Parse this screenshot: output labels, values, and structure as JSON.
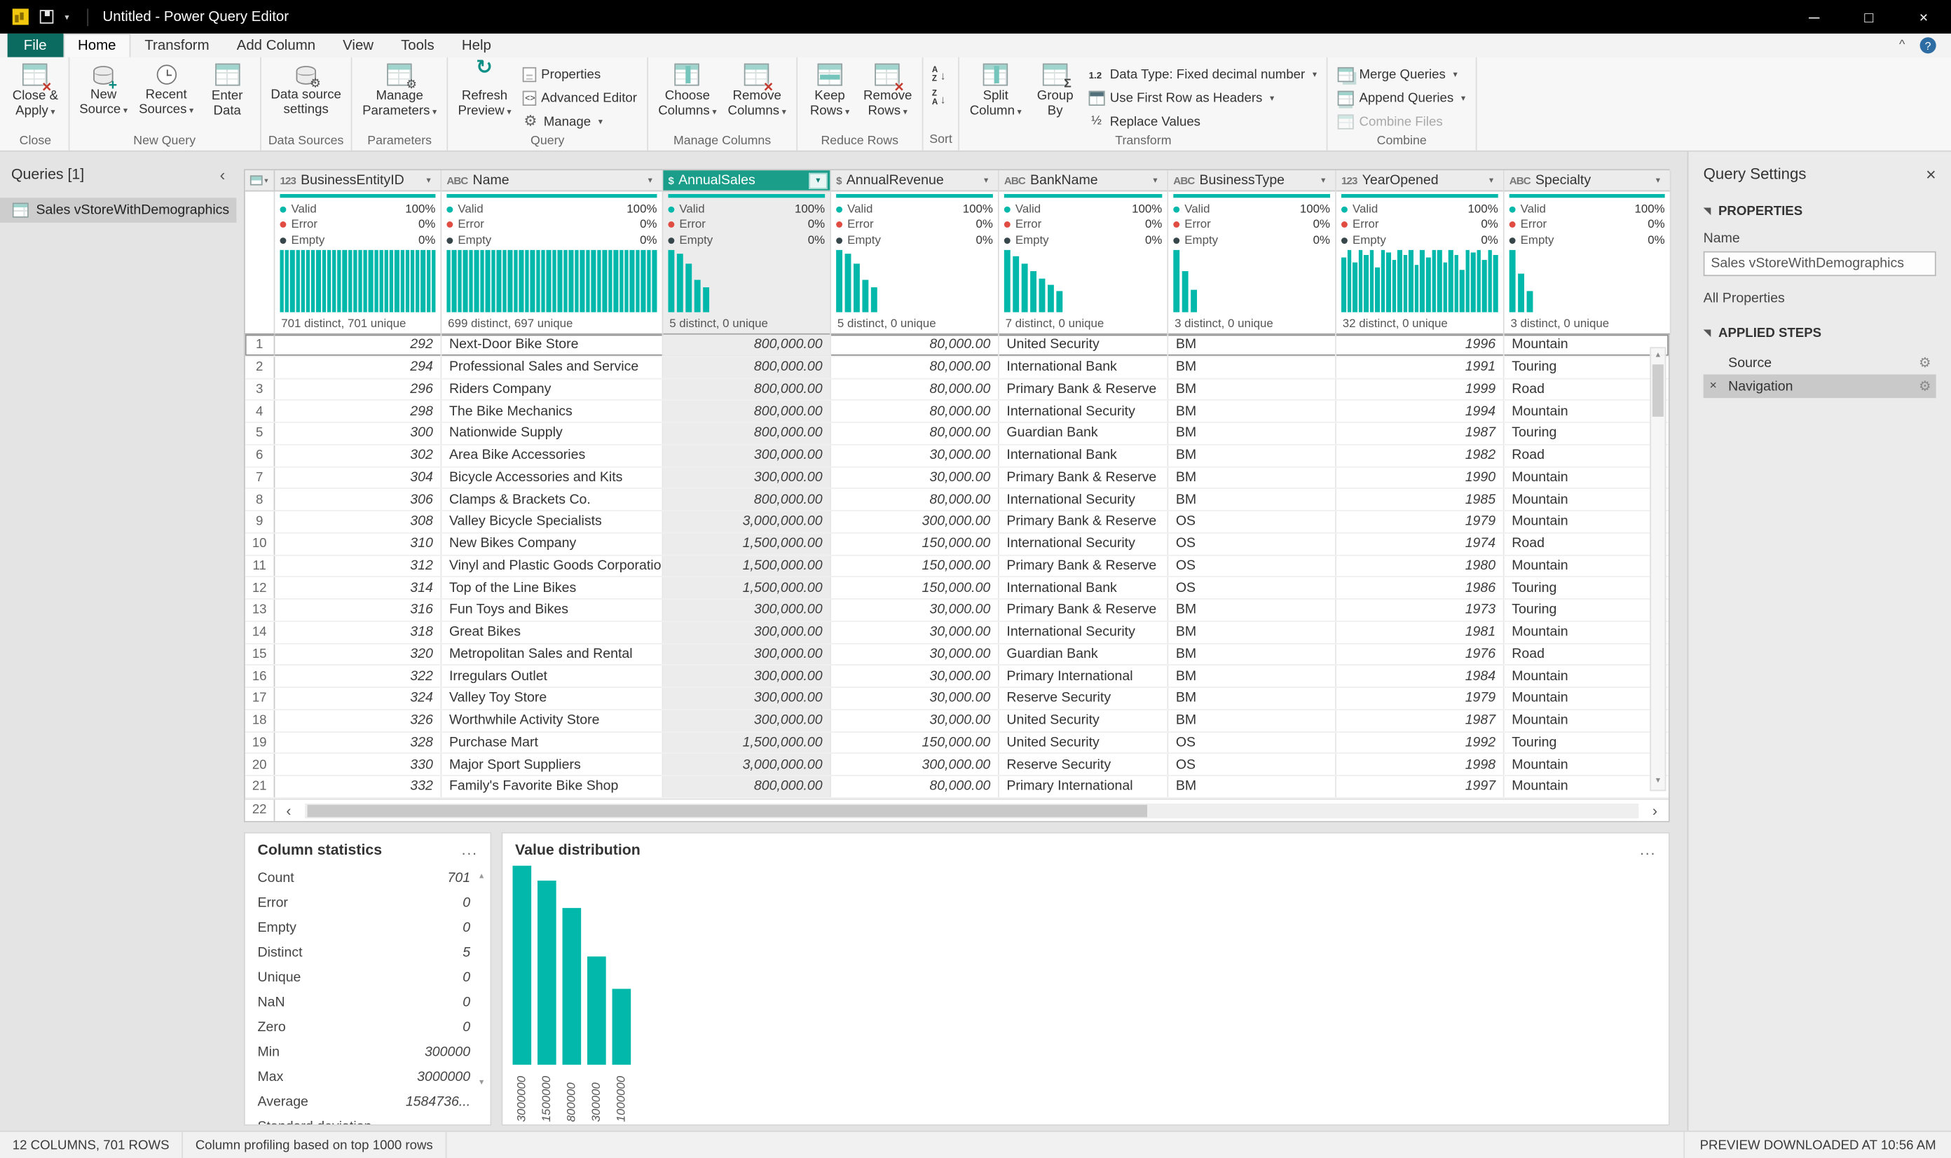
{
  "appearance": {
    "accent_teal": "#01b8aa",
    "selected_header_teal": "#1a9e8a",
    "error_red": "#e04c42",
    "empty_dark": "#37464a",
    "file_tab_teal": "#0c6b60",
    "titlebar_black": "#000000"
  },
  "titlebar": {
    "title": "Untitled - Power Query Editor"
  },
  "tabs": {
    "file": "File",
    "items": [
      {
        "label": "Home",
        "cls": "active"
      },
      {
        "label": "Transform",
        "cls": ""
      },
      {
        "label": "Add Column",
        "cls": ""
      },
      {
        "label": "View",
        "cls": ""
      },
      {
        "label": "Tools",
        "cls": ""
      },
      {
        "label": "Help",
        "cls": ""
      }
    ]
  },
  "ribbon": {
    "groups": {
      "close": "Close",
      "new_query": "New Query",
      "data_sources": "Data Sources",
      "parameters": "Parameters",
      "query": "Query",
      "manage_columns": "Manage Columns",
      "reduce_rows": "Reduce Rows",
      "sort": "Sort",
      "transform": "Transform",
      "combine": "Combine"
    },
    "buttons": {
      "close_apply_1": "Close &",
      "close_apply_2": "Apply",
      "new_source_1": "New",
      "new_source_2": "Source",
      "recent_sources_1": "Recent",
      "recent_sources_2": "Sources",
      "enter_data_1": "Enter",
      "enter_data_2": "Data",
      "data_source_settings_1": "Data source",
      "data_source_settings_2": "settings",
      "manage_parameters_1": "Manage",
      "manage_parameters_2": "Parameters",
      "refresh_preview_1": "Refresh",
      "refresh_preview_2": "Preview",
      "properties": "Properties",
      "advanced_editor": "Advanced Editor",
      "manage": "Manage",
      "choose_columns_1": "Choose",
      "choose_columns_2": "Columns",
      "remove_columns_1": "Remove",
      "remove_columns_2": "Columns",
      "keep_rows_1": "Keep",
      "keep_rows_2": "Rows",
      "remove_rows_1": "Remove",
      "remove_rows_2": "Rows",
      "split_column_1": "Split",
      "split_column_2": "Column",
      "group_by_1": "Group",
      "group_by_2": "By",
      "data_type": "Data Type: Fixed decimal number",
      "use_first_row": "Use First Row as Headers",
      "replace_values": "Replace Values",
      "merge_queries": "Merge Queries",
      "append_queries": "Append Queries",
      "combine_files": "Combine Files"
    }
  },
  "queries_panel": {
    "header": "Queries [1]",
    "items": [
      {
        "label": "Sales vStoreWithDemographics",
        "cls": "sel"
      }
    ]
  },
  "grid": {
    "quality_labels": {
      "valid": "Valid",
      "error": "Error",
      "empty": "Empty"
    },
    "partial_row_number": "22",
    "columns": [
      {
        "name": "BusinessEntityID",
        "type": "123",
        "w": 134,
        "cls": "",
        "hmode": "dense",
        "valid": "100%",
        "error": "0%",
        "empty": "0%",
        "distinct": "701 distinct, 701 unique",
        "bars": [
          50,
          50,
          50,
          50,
          50,
          50,
          50,
          50,
          50,
          50,
          50,
          50,
          50,
          50,
          50,
          50,
          50,
          50,
          50,
          50,
          50,
          50,
          50,
          50,
          50,
          50,
          50,
          50,
          50,
          50
        ]
      },
      {
        "name": "Name",
        "type": "ABC",
        "w": 178,
        "cls": "",
        "hmode": "dense",
        "valid": "100%",
        "error": "0%",
        "empty": "0%",
        "distinct": "699 distinct, 697 unique",
        "bars": [
          50,
          50,
          50,
          50,
          50,
          50,
          50,
          50,
          50,
          50,
          50,
          50,
          50,
          50,
          50,
          50,
          50,
          50,
          50,
          50,
          50,
          50,
          50,
          50,
          50,
          50,
          50,
          50,
          50,
          50,
          50,
          50,
          50,
          50,
          50,
          50,
          50,
          50
        ]
      },
      {
        "name": "AnnualSales",
        "type": "$",
        "w": 135,
        "cls": "sel",
        "hmode": "sparse",
        "valid": "100%",
        "error": "0%",
        "empty": "0%",
        "distinct": "5 distinct, 0 unique",
        "bars": [
          50,
          47,
          39,
          26,
          20
        ]
      },
      {
        "name": "AnnualRevenue",
        "type": "$",
        "w": 135,
        "cls": "",
        "hmode": "sparse",
        "valid": "100%",
        "error": "0%",
        "empty": "0%",
        "distinct": "5 distinct, 0 unique",
        "bars": [
          50,
          47,
          39,
          26,
          20
        ]
      },
      {
        "name": "BankName",
        "type": "ABC",
        "w": 136,
        "cls": "",
        "hmode": "sparse",
        "valid": "100%",
        "error": "0%",
        "empty": "0%",
        "distinct": "7 distinct, 0 unique",
        "bars": [
          50,
          45,
          39,
          33,
          27,
          22,
          17
        ]
      },
      {
        "name": "BusinessType",
        "type": "ABC",
        "w": 135,
        "cls": "",
        "hmode": "sparse",
        "valid": "100%",
        "error": "0%",
        "empty": "0%",
        "distinct": "3 distinct, 0 unique",
        "bars": [
          50,
          33,
          18
        ]
      },
      {
        "name": "YearOpened",
        "type": "123",
        "w": 135,
        "cls": "",
        "hmode": "dense",
        "valid": "100%",
        "error": "0%",
        "empty": "0%",
        "distinct": "32 distinct, 0 unique",
        "bars": [
          44,
          50,
          40,
          50,
          46,
          50,
          36,
          50,
          48,
          42,
          50,
          46,
          50,
          38,
          50,
          44,
          50,
          50,
          40,
          50,
          46,
          34,
          50,
          48,
          50,
          42,
          50,
          46
        ]
      },
      {
        "name": "Specialty",
        "type": "ABC",
        "w": 134,
        "cls": "",
        "hmode": "sparse",
        "valid": "100%",
        "error": "0%",
        "empty": "0%",
        "distinct": "3 distinct, 0 unique",
        "bars": [
          50,
          31,
          17
        ]
      }
    ],
    "rows": [
      {
        "n": "1",
        "cls": "cur",
        "cells": [
          "292",
          "Next-Door Bike Store",
          "800,000.00",
          "80,000.00",
          "United Security",
          "BM",
          "1996",
          "Mountain"
        ]
      },
      {
        "n": "2",
        "cls": "",
        "cells": [
          "294",
          "Professional Sales and Service",
          "800,000.00",
          "80,000.00",
          "International Bank",
          "BM",
          "1991",
          "Touring"
        ]
      },
      {
        "n": "3",
        "cls": "",
        "cells": [
          "296",
          "Riders Company",
          "800,000.00",
          "80,000.00",
          "Primary Bank & Reserve",
          "BM",
          "1999",
          "Road"
        ]
      },
      {
        "n": "4",
        "cls": "",
        "cells": [
          "298",
          "The Bike Mechanics",
          "800,000.00",
          "80,000.00",
          "International Security",
          "BM",
          "1994",
          "Mountain"
        ]
      },
      {
        "n": "5",
        "cls": "",
        "cells": [
          "300",
          "Nationwide Supply",
          "800,000.00",
          "80,000.00",
          "Guardian Bank",
          "BM",
          "1987",
          "Touring"
        ]
      },
      {
        "n": "6",
        "cls": "",
        "cells": [
          "302",
          "Area Bike Accessories",
          "300,000.00",
          "30,000.00",
          "International Bank",
          "BM",
          "1982",
          "Road"
        ]
      },
      {
        "n": "7",
        "cls": "",
        "cells": [
          "304",
          "Bicycle Accessories and Kits",
          "300,000.00",
          "30,000.00",
          "Primary Bank & Reserve",
          "BM",
          "1990",
          "Mountain"
        ]
      },
      {
        "n": "8",
        "cls": "",
        "cells": [
          "306",
          "Clamps & Brackets Co.",
          "800,000.00",
          "80,000.00",
          "International Security",
          "BM",
          "1985",
          "Mountain"
        ]
      },
      {
        "n": "9",
        "cls": "",
        "cells": [
          "308",
          "Valley Bicycle Specialists",
          "3,000,000.00",
          "300,000.00",
          "Primary Bank & Reserve",
          "OS",
          "1979",
          "Mountain"
        ]
      },
      {
        "n": "10",
        "cls": "",
        "cells": [
          "310",
          "New Bikes Company",
          "1,500,000.00",
          "150,000.00",
          "International Security",
          "OS",
          "1974",
          "Road"
        ]
      },
      {
        "n": "11",
        "cls": "",
        "cells": [
          "312",
          "Vinyl and Plastic Goods Corporation",
          "1,500,000.00",
          "150,000.00",
          "Primary Bank & Reserve",
          "OS",
          "1980",
          "Mountain"
        ]
      },
      {
        "n": "12",
        "cls": "",
        "cells": [
          "314",
          "Top of the Line Bikes",
          "1,500,000.00",
          "150,000.00",
          "International Bank",
          "OS",
          "1986",
          "Touring"
        ]
      },
      {
        "n": "13",
        "cls": "",
        "cells": [
          "316",
          "Fun Toys and Bikes",
          "300,000.00",
          "30,000.00",
          "Primary Bank & Reserve",
          "BM",
          "1973",
          "Touring"
        ]
      },
      {
        "n": "14",
        "cls": "",
        "cells": [
          "318",
          "Great Bikes",
          "300,000.00",
          "30,000.00",
          "International Security",
          "BM",
          "1981",
          "Mountain"
        ]
      },
      {
        "n": "15",
        "cls": "",
        "cells": [
          "320",
          "Metropolitan Sales and Rental",
          "300,000.00",
          "30,000.00",
          "Guardian Bank",
          "BM",
          "1976",
          "Road"
        ]
      },
      {
        "n": "16",
        "cls": "",
        "cells": [
          "322",
          "Irregulars Outlet",
          "300,000.00",
          "30,000.00",
          "Primary International",
          "BM",
          "1984",
          "Mountain"
        ]
      },
      {
        "n": "17",
        "cls": "",
        "cells": [
          "324",
          "Valley Toy Store",
          "300,000.00",
          "30,000.00",
          "Reserve Security",
          "BM",
          "1979",
          "Mountain"
        ]
      },
      {
        "n": "18",
        "cls": "",
        "cells": [
          "326",
          "Worthwhile Activity Store",
          "300,000.00",
          "30,000.00",
          "United Security",
          "BM",
          "1987",
          "Mountain"
        ]
      },
      {
        "n": "19",
        "cls": "",
        "cells": [
          "328",
          "Purchase Mart",
          "1,500,000.00",
          "150,000.00",
          "United Security",
          "OS",
          "1992",
          "Touring"
        ]
      },
      {
        "n": "20",
        "cls": "",
        "cells": [
          "330",
          "Major Sport Suppliers",
          "3,000,000.00",
          "300,000.00",
          "Reserve Security",
          "OS",
          "1998",
          "Mountain"
        ]
      },
      {
        "n": "21",
        "cls": "",
        "cells": [
          "332",
          "Family's Favorite Bike Shop",
          "800,000.00",
          "80,000.00",
          "Primary International",
          "BM",
          "1997",
          "Mountain"
        ]
      }
    ]
  },
  "stats_panel": {
    "title": "Column statistics",
    "menu": "...",
    "items": [
      {
        "label": "Count",
        "value": "701"
      },
      {
        "label": "Error",
        "value": "0"
      },
      {
        "label": "Empty",
        "value": "0"
      },
      {
        "label": "Distinct",
        "value": "5"
      },
      {
        "label": "Unique",
        "value": "0"
      },
      {
        "label": "NaN",
        "value": "0"
      },
      {
        "label": "Zero",
        "value": "0"
      },
      {
        "label": "Min",
        "value": "300000"
      },
      {
        "label": "Max",
        "value": "3000000"
      },
      {
        "label": "Average",
        "value": "1584736..."
      },
      {
        "label": "Standard deviation",
        "value": ""
      }
    ]
  },
  "distribution_panel": {
    "title": "Value distribution",
    "menu": "...",
    "chart": {
      "type": "bar",
      "bars": [
        {
          "label": "3000000",
          "h": 160
        },
        {
          "label": "1500000",
          "h": 148
        },
        {
          "label": "800000",
          "h": 126
        },
        {
          "label": "300000",
          "h": 87
        },
        {
          "label": "1000000",
          "h": 61
        }
      ]
    }
  },
  "settings_panel": {
    "title": "Query Settings",
    "properties_header": "PROPERTIES",
    "name_label": "Name",
    "name_value": "Sales vStoreWithDemographics",
    "all_properties": "All Properties",
    "applied_steps_header": "APPLIED STEPS",
    "steps": [
      {
        "label": "Source",
        "cls": ""
      },
      {
        "label": "Navigation",
        "cls": "sel"
      }
    ]
  },
  "statusbar": {
    "left1": "12 COLUMNS, 701 ROWS",
    "left2": "Column profiling based on top 1000 rows",
    "right": "PREVIEW DOWNLOADED AT 10:56 AM"
  }
}
